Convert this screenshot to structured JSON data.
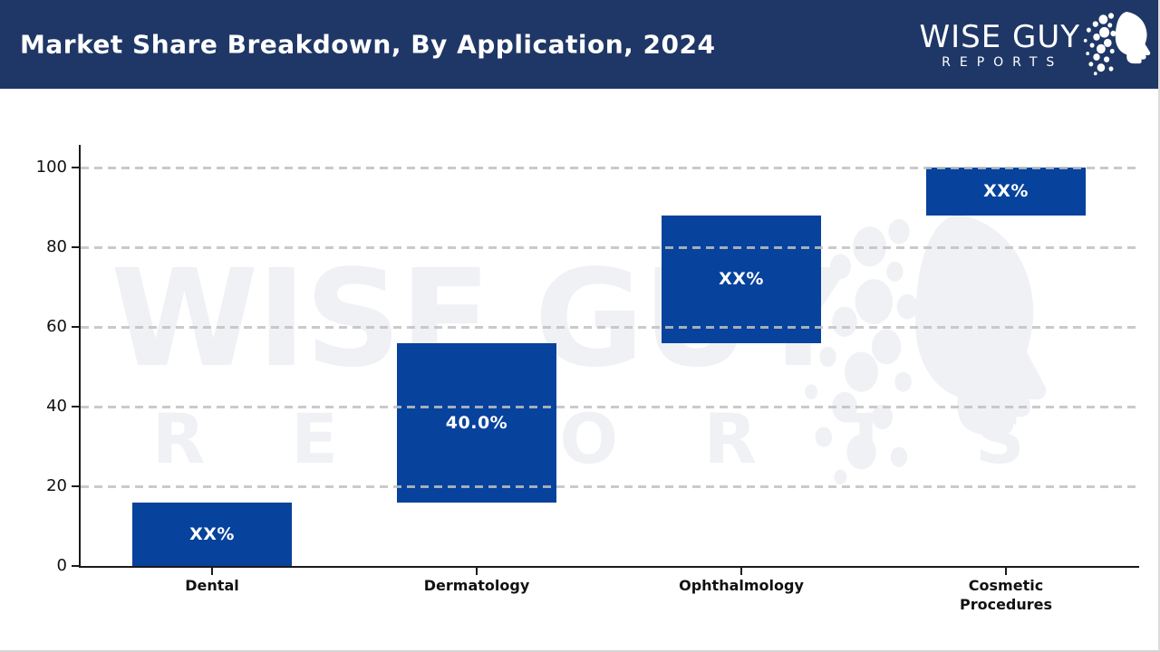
{
  "header": {
    "title": "Market Share Breakdown, By Application, 2024",
    "logo": {
      "name_line": "WISE GUY",
      "sub_line": "REPORTS",
      "head_icon": "dotted-head-profile-icon"
    }
  },
  "watermark": {
    "line1": "WISE GUY",
    "line2": "R E P O R T S",
    "head_icon": "dotted-head-profile-watermark"
  },
  "colors": {
    "header_bg": "#1f3766",
    "bar": "#07429c",
    "bar_label_text": "#ffffff",
    "gridline": "#c9c9c9",
    "axis": "#1a1a1a",
    "watermark": "#f0f1f4"
  },
  "chart_data": {
    "type": "bar",
    "subtype": "floating-waterfall",
    "title": "Market Share Breakdown, By Application, 2024",
    "categories": [
      "Dental",
      "Dermatology",
      "Ophthalmology",
      "Cosmetic Procedures"
    ],
    "series": [
      {
        "name": "Market Share (%)",
        "segments": [
          {
            "category": "Dental",
            "start": 0,
            "end": 16,
            "span": 16,
            "label": "XX%"
          },
          {
            "category": "Dermatology",
            "start": 16,
            "end": 56,
            "span": 40,
            "label": "40.0%"
          },
          {
            "category": "Ophthalmology",
            "start": 56,
            "end": 88,
            "span": 32,
            "label": "XX%"
          },
          {
            "category": "Cosmetic Procedures",
            "start": 88,
            "end": 100,
            "span": 12,
            "label": "XX%"
          }
        ]
      }
    ],
    "yticks": [
      0,
      20,
      40,
      60,
      80,
      100
    ],
    "ylim": [
      0,
      105
    ],
    "xlabel": "",
    "ylabel": "",
    "grid": "horizontal-dashed",
    "legend": "none"
  }
}
